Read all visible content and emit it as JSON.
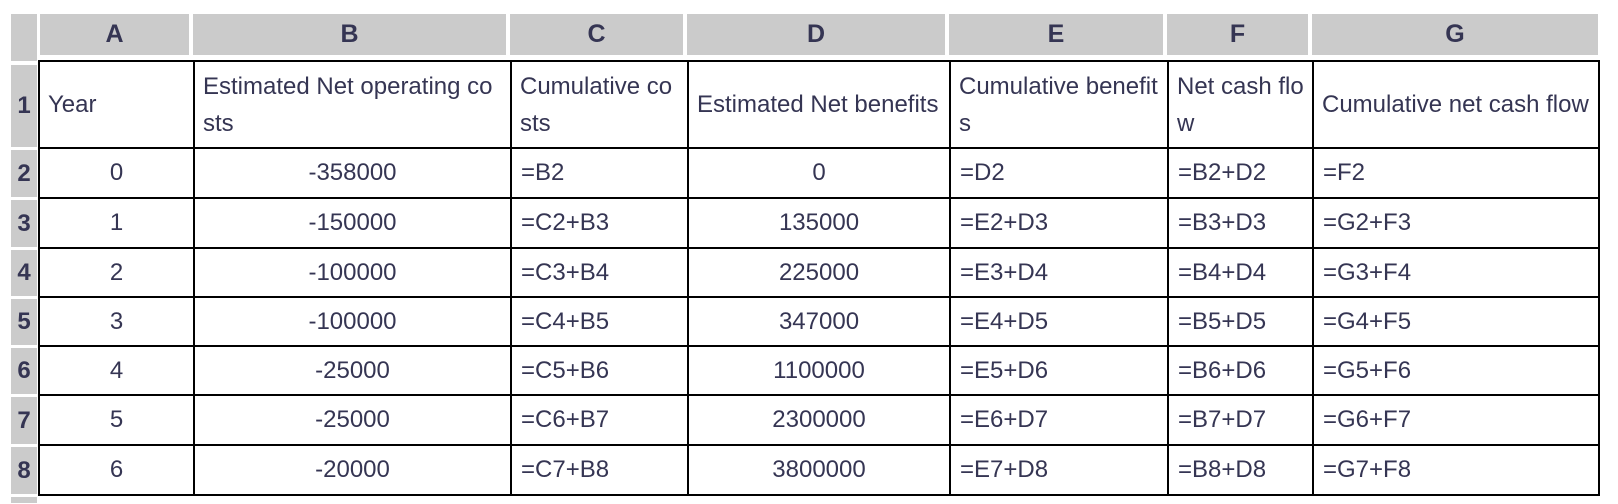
{
  "sheet": {
    "col_headers": [
      "A",
      "B",
      "C",
      "D",
      "E",
      "F",
      "G"
    ],
    "row_headers": [
      "1",
      "2",
      "3",
      "4",
      "5",
      "6",
      "7",
      "8"
    ],
    "header_row": [
      "Year",
      "Estimated Net operating costs",
      "Cumulative costs",
      "Estimated Net benefits",
      "Cumulative benefits",
      "Net cash flow",
      "Cumulative net cash flow"
    ],
    "rows": [
      [
        "0",
        "-358000",
        "=B2",
        "0",
        "=D2",
        "=B2+D2",
        "=F2"
      ],
      [
        "1",
        "-150000",
        "=C2+B3",
        "135000",
        "=E2+D3",
        "=B3+D3",
        "=G2+F3"
      ],
      [
        "2",
        "-100000",
        "=C3+B4",
        "225000",
        "=E3+D4",
        "=B4+D4",
        "=G3+F4"
      ],
      [
        "3",
        "-100000",
        "=C4+B5",
        "347000",
        "=E4+D5",
        "=B5+D5",
        "=G4+F5"
      ],
      [
        "4",
        "-25000",
        "=C5+B6",
        "1100000",
        "=E5+D6",
        "=B6+D6",
        "=G5+F6"
      ],
      [
        "5",
        "-25000",
        "=C6+B7",
        "2300000",
        "=E6+D7",
        "=B7+D7",
        "=G6+F7"
      ],
      [
        "6",
        "-20000",
        "=C7+B8",
        "3800000",
        "=E7+D8",
        "=B8+D8",
        "=G7+F8"
      ]
    ],
    "colors": {
      "header_bg": "#cbcbcb",
      "text": "#353553",
      "grid_border": "#000000",
      "separator": "#ffffff",
      "cell_bg": "#ffffff"
    }
  }
}
